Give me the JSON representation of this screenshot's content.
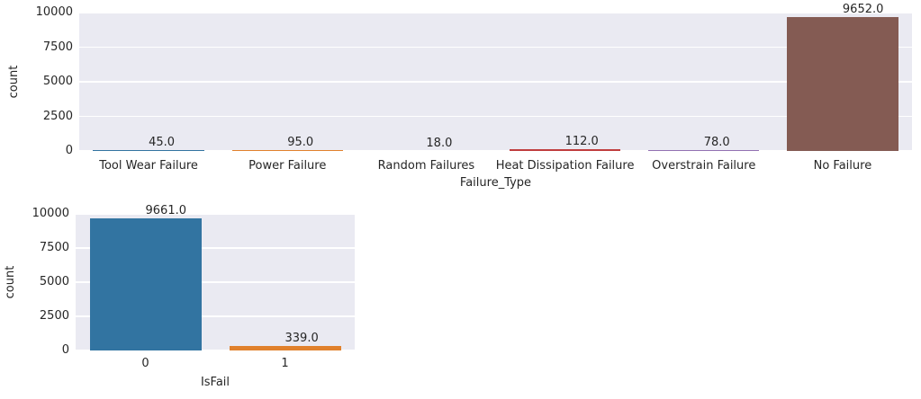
{
  "page": {
    "background": "#ffffff"
  },
  "chart_data": [
    {
      "type": "bar",
      "title": "",
      "xlabel": "Failure_Type",
      "ylabel": "count",
      "categories": [
        "Tool Wear Failure",
        "Power Failure",
        "Random Failures",
        "Heat Dissipation Failure",
        "Overstrain Failure",
        "No Failure"
      ],
      "values": [
        45.0,
        95.0,
        18.0,
        112.0,
        78.0,
        9652.0
      ],
      "bar_value_labels": [
        "45.0",
        "95.0",
        "18.0",
        "112.0",
        "78.0",
        "9652.0"
      ],
      "bar_colors": [
        "#3274a1",
        "#e1812c",
        "#3a923a",
        "#c03d3e",
        "#9372b2",
        "#845b53"
      ],
      "ylim": [
        0,
        10000
      ],
      "yticks": [
        0,
        2500,
        5000,
        7500,
        10000
      ],
      "ytick_labels": [
        "0",
        "2500",
        "5000",
        "7500",
        "10000"
      ],
      "grid": true,
      "legend": "none",
      "plot_background": "#eaeaf2",
      "grid_color": "#ffffff",
      "text_color": "#262626"
    },
    {
      "type": "bar",
      "title": "",
      "xlabel": "IsFail",
      "ylabel": "count",
      "categories": [
        "0",
        "1"
      ],
      "values": [
        9661.0,
        339.0
      ],
      "bar_value_labels": [
        "9661.0",
        "339.0"
      ],
      "bar_colors": [
        "#3274a1",
        "#e1812c"
      ],
      "ylim": [
        0,
        10000
      ],
      "yticks": [
        0,
        2500,
        5000,
        7500,
        10000
      ],
      "ytick_labels": [
        "0",
        "2500",
        "5000",
        "7500",
        "10000"
      ],
      "grid": true,
      "legend": "none",
      "plot_background": "#eaeaf2",
      "grid_color": "#ffffff",
      "text_color": "#262626"
    }
  ]
}
